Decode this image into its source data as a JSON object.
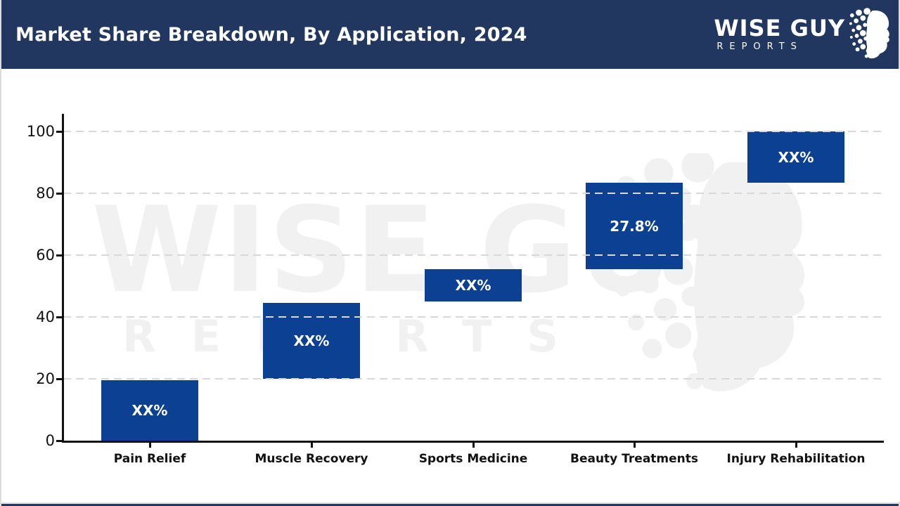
{
  "header": {
    "title": "Market Share Breakdown, By Application, 2024",
    "logo": {
      "line1": "WISE GUY",
      "line2": "REPORTS"
    }
  },
  "watermark": {
    "line1": "WISE GUY",
    "line2": "REPORTS"
  },
  "colors": {
    "header_bg": "#21375f",
    "bar": "#0b4093",
    "gridline": "#d8d8d8",
    "axis": "#111111",
    "watermark": "#f1f1f2",
    "bar_label_text": "#ffffff"
  },
  "chart_data": {
    "type": "bar",
    "subtype": "waterfall",
    "title": "Market Share Breakdown, By Application, 2024",
    "xlabel": "",
    "ylabel": "",
    "ylim": [
      0,
      105
    ],
    "yticks": [
      0,
      20,
      40,
      60,
      80,
      100
    ],
    "grid": "horizontal-dashed",
    "legend": "none",
    "categories": [
      "Pain Relief",
      "Muscle Recovery",
      "Sports Medicine",
      "Beauty Treatments",
      "Injury Rehabilitation"
    ],
    "segments": [
      {
        "category": "Pain Relief",
        "start": 0,
        "end": 19.5,
        "label": "XX%"
      },
      {
        "category": "Muscle Recovery",
        "start": 20,
        "end": 44.5,
        "label": "XX%"
      },
      {
        "category": "Sports Medicine",
        "start": 45,
        "end": 55.5,
        "label": "XX%"
      },
      {
        "category": "Beauty Treatments",
        "start": 55.5,
        "end": 83.3,
        "label": "27.8%"
      },
      {
        "category": "Injury Rehabilitation",
        "start": 83.3,
        "end": 100,
        "label": "XX%"
      }
    ]
  }
}
